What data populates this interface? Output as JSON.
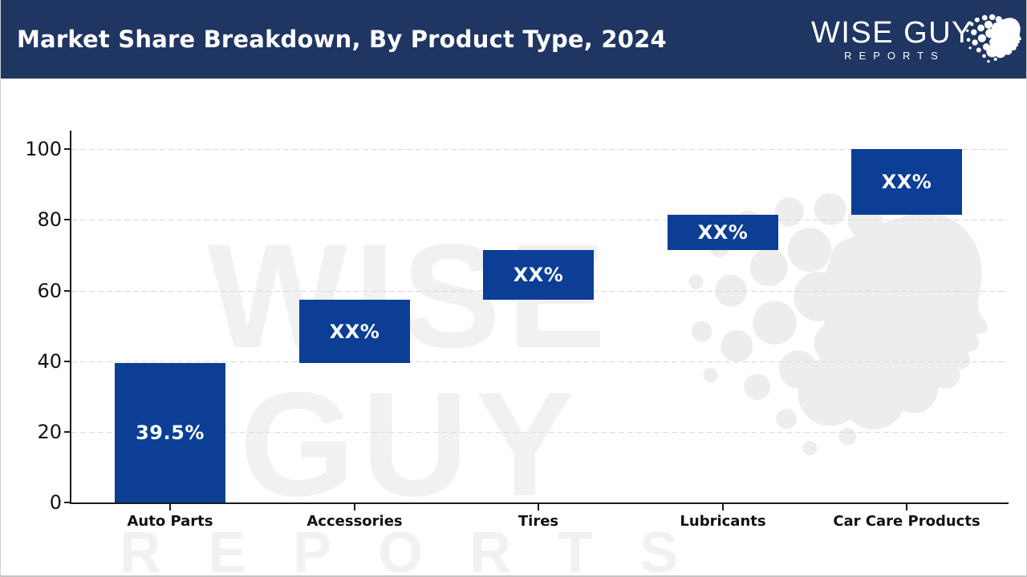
{
  "header": {
    "title": "Market Share Breakdown, By Product Type, 2024",
    "bg_color": "#1f3562",
    "logo": {
      "wordmark": "WISE GUY",
      "subtext": "REPORTS"
    }
  },
  "watermark": {
    "wordmark": "WISE GUY",
    "subtext": "REPORTS"
  },
  "chart_data": {
    "type": "bar",
    "variant": "waterfall",
    "categories": [
      "Auto Parts",
      "Accessories",
      "Tires",
      "Lubricants",
      "Car Care Products"
    ],
    "segments": [
      {
        "category": "Auto Parts",
        "start": 0,
        "end": 39.5,
        "label": "39.5%"
      },
      {
        "category": "Accessories",
        "start": 39.5,
        "end": 57.5,
        "label": "XX%"
      },
      {
        "category": "Tires",
        "start": 57.5,
        "end": 71.5,
        "label": "XX%"
      },
      {
        "category": "Lubricants",
        "start": 71.5,
        "end": 81.5,
        "label": "XX%"
      },
      {
        "category": "Car Care Products",
        "start": 81.5,
        "end": 100,
        "label": "XX%"
      }
    ],
    "yticks": [
      0,
      20,
      40,
      60,
      80,
      100
    ],
    "ylim": [
      0,
      100
    ],
    "grid": "horizontal-dashed",
    "bar_color": "#0b3e94",
    "value_label_color": "#ffffff",
    "axis_color": "#1a1a1a"
  }
}
